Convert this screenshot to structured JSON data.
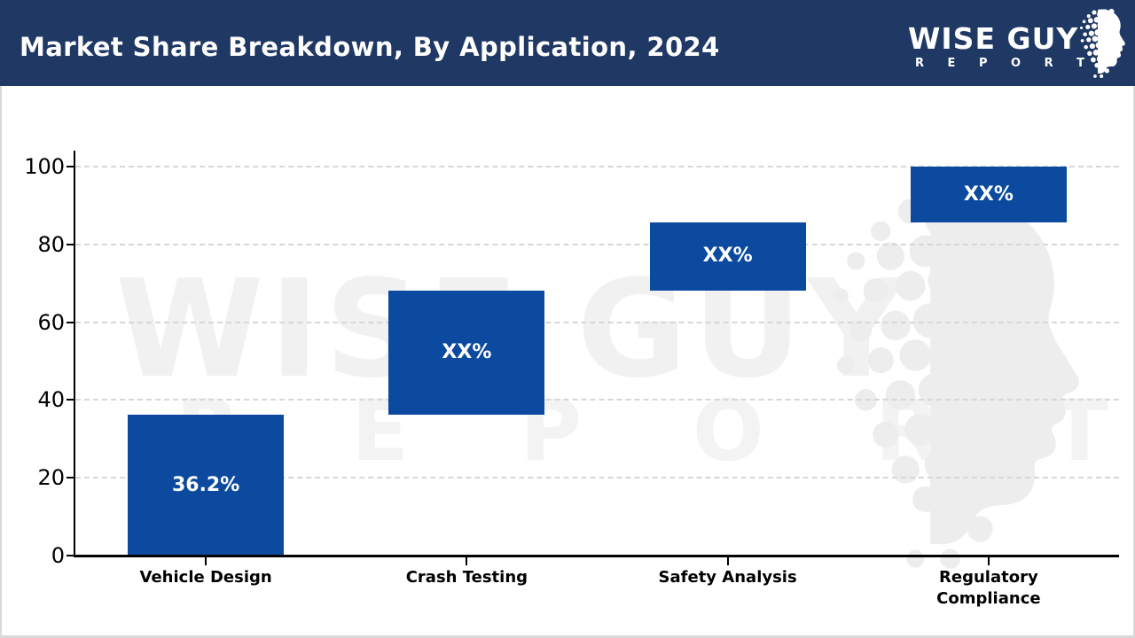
{
  "header": {
    "title": "Market Share Breakdown, By Application, 2024",
    "bg_color": "#1F3864",
    "logo": {
      "name": "Wise Guy Reports",
      "line1": "WISE GUY",
      "line2": "R E P O R T S"
    }
  },
  "watermark": {
    "line1": "WISE GUY",
    "line2": "R E P O R T S"
  },
  "chart_data": {
    "type": "bar",
    "subtype": "waterfall",
    "title": "Market Share Breakdown, By Application, 2024",
    "categories": [
      "Vehicle Design",
      "Crash Testing",
      "Safety Analysis",
      "Regulatory Compliance"
    ],
    "series": [
      {
        "name": "Market share (%)",
        "segments": [
          {
            "category": "Vehicle Design",
            "start": 0,
            "end": 36.2,
            "label": "36.2%"
          },
          {
            "category": "Crash Testing",
            "start": 36.2,
            "end": 68.2,
            "label": "XX%"
          },
          {
            "category": "Safety Analysis",
            "start": 68.2,
            "end": 85.6,
            "label": "XX%"
          },
          {
            "category": "Regulatory Compliance",
            "start": 85.6,
            "end": 100,
            "label": "XX%"
          }
        ]
      }
    ],
    "yticks": [
      0,
      20,
      40,
      60,
      80,
      100
    ],
    "ylim": [
      0,
      104
    ],
    "xlabel": "",
    "ylabel": "",
    "bar_color": "#0B4A9E",
    "label_color": "#FFFFFF",
    "grid": "horizontal-dashed",
    "grid_color": "#d7d7d7",
    "legend": "none"
  }
}
